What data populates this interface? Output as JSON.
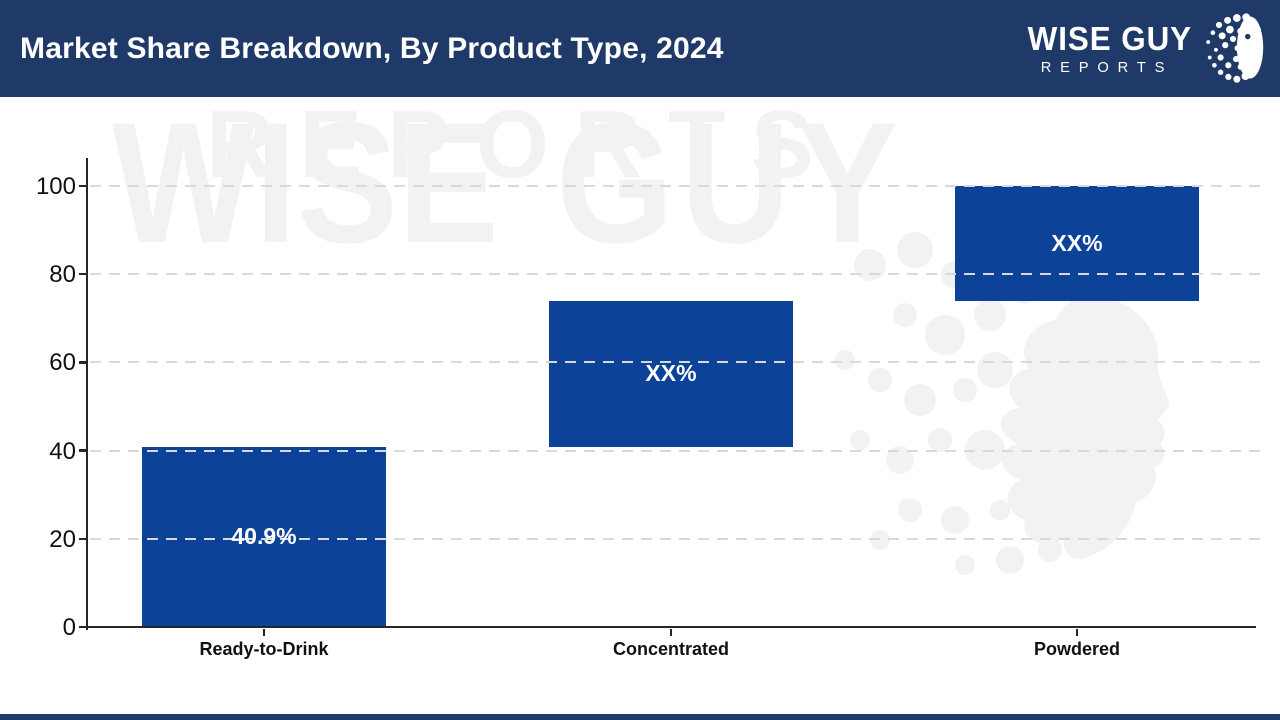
{
  "header": {
    "title": "Market Share Breakdown, By Product Type, 2024",
    "logo": {
      "name": "WISE GUY",
      "sub": "REPORTS"
    }
  },
  "watermark": {
    "word1": "WISE",
    "word2": "GUY",
    "word3": "REPORTS"
  },
  "chart_data": {
    "type": "bar",
    "subtype": "floating-waterfall-segments",
    "title": "Market Share Breakdown, By Product Type, 2024",
    "categories": [
      "Ready-to-Drink",
      "Concentrated",
      "Powdered"
    ],
    "series": [
      {
        "category": "Ready-to-Drink",
        "start": 0,
        "end": 40.9,
        "label": "40.9%"
      },
      {
        "category": "Concentrated",
        "start": 40.9,
        "end": 73.9,
        "label": "XX%"
      },
      {
        "category": "Powdered",
        "start": 73.9,
        "end": 100,
        "label": "XX%"
      }
    ],
    "xlabel": "",
    "ylabel": "",
    "ylim": [
      0,
      100
    ],
    "yticks": [
      0,
      20,
      40,
      60,
      80,
      100
    ],
    "grid": "dashed-horizontal",
    "legend": "none",
    "bar_color": "#0c4298",
    "bar_label_color": "#ffffff"
  },
  "colors": {
    "header_bg": "#1f3a68",
    "footer_bg": "#1f3a68",
    "logo_fg": "#ffffff",
    "axis": "#262626",
    "tick_label": "#111111",
    "grid": "#d9d9d9",
    "watermark": "#f2f2f5",
    "background": "#ffffff"
  }
}
